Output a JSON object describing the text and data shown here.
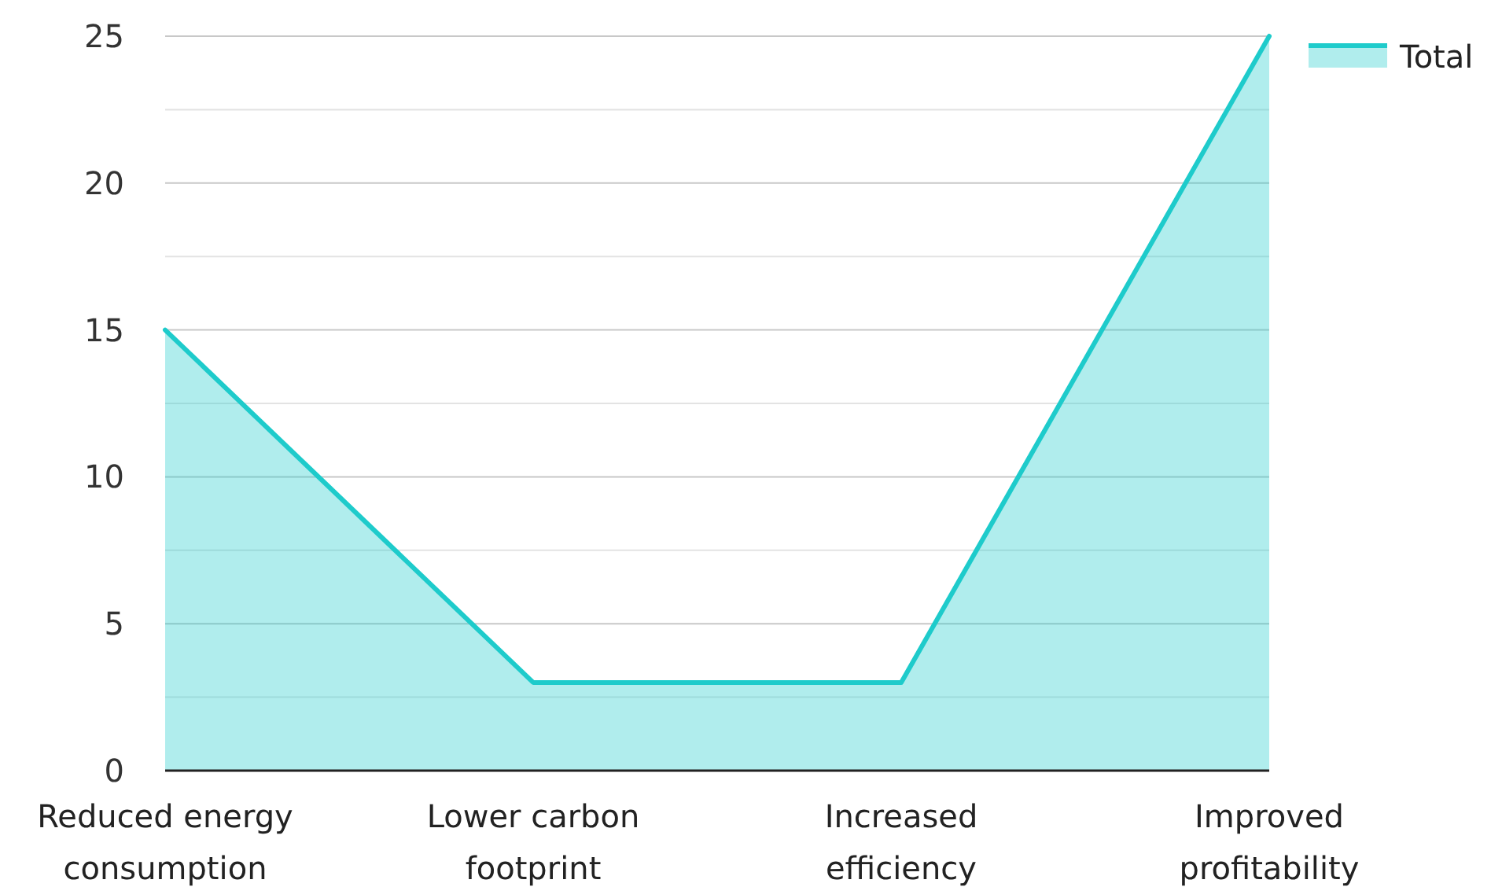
{
  "chart_data": {
    "type": "area",
    "categories": [
      "Reduced energy consumption",
      "Lower carbon footprint",
      "Increased efficiency",
      "Improved profitability"
    ],
    "series": [
      {
        "name": "Total",
        "color": "#1ecbcb",
        "values": [
          15,
          3,
          3,
          25
        ]
      }
    ],
    "ylim": [
      0,
      25
    ],
    "yticks": [
      0,
      {
        "value": 2.5,
        "label": null
      },
      5,
      {
        "value": 7.5,
        "label": null
      },
      10,
      {
        "value": 12.5,
        "label": null
      },
      15,
      {
        "value": 17.5,
        "label": null
      },
      20,
      {
        "value": 22.5,
        "label": null
      },
      25
    ],
    "grid": "y",
    "legend": "top right"
  }
}
